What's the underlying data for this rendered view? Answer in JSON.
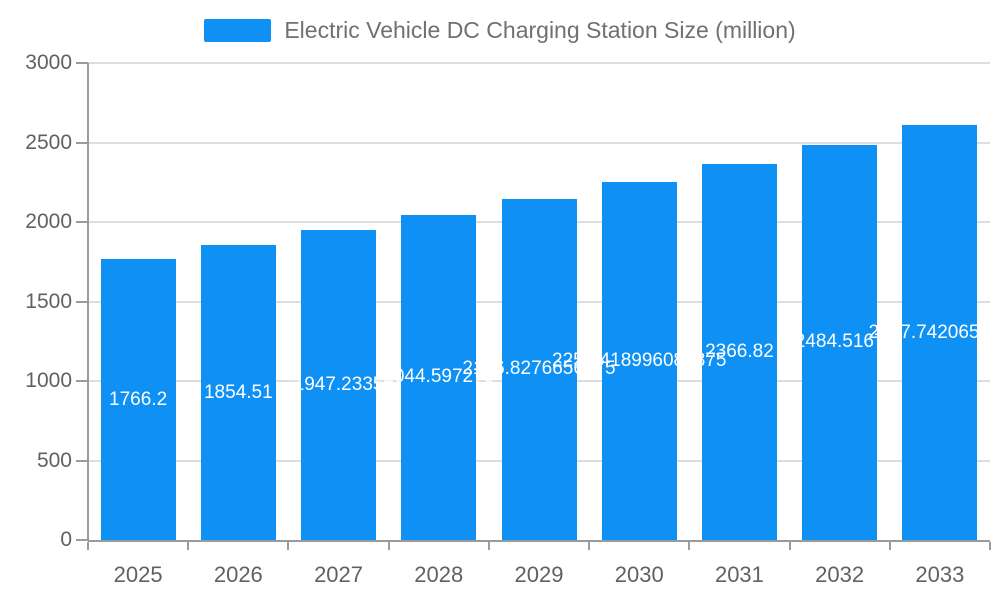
{
  "legend": {
    "label": "Electric Vehicle DC Charging Station Size (million)"
  },
  "chart_data": {
    "type": "bar",
    "title": "Electric Vehicle DC Charging Station Size (million)",
    "legend_position": "top-center",
    "grid": true,
    "categories": [
      "2025",
      "2026",
      "2027",
      "2028",
      "2029",
      "2030",
      "2031",
      "2032",
      "2033"
    ],
    "values": [
      1766.2,
      1854.51,
      1947.2335,
      2044.597275,
      2146.8276656875,
      2253.418996088875,
      2366.82,
      2484.5167,
      2607.742065875
    ],
    "value_labels": [
      "1766.2",
      "1854.51",
      "1947.2335",
      "2044.597275",
      "2146.8276656875",
      "2253.418996088875",
      "2366.82",
      "2484.5167",
      "2607.742065875"
    ],
    "xlabel": "",
    "ylabel": "",
    "ylim": [
      0,
      3000
    ],
    "yticks": [
      0,
      500,
      1000,
      1500,
      2000,
      2500,
      3000
    ],
    "colors": {
      "bar": "#0E90F5",
      "value_label_text": "#FFFFFF",
      "axis_text": "#616161",
      "legend_text": "#707070",
      "gridline": "#DEDEDE",
      "axis_line": "#9B9B9B",
      "background": "#FFFFFF"
    }
  }
}
